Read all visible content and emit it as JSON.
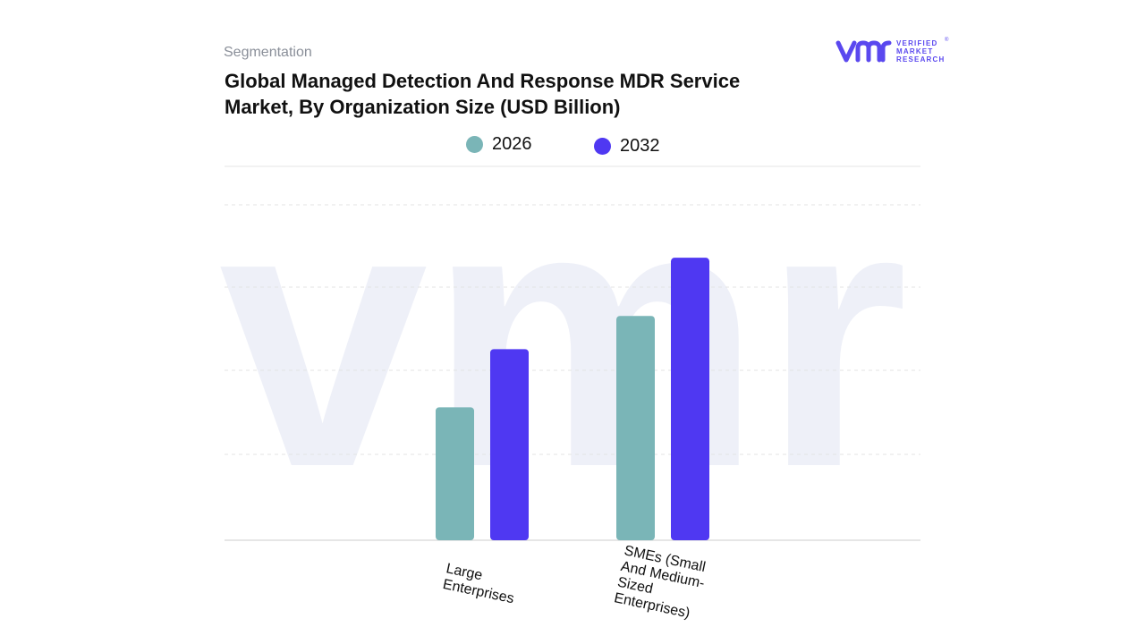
{
  "header": {
    "subtitle": "Segmentation",
    "title": "Global Managed Detection And Response MDR Service Market, By Organization Size (USD Billion)"
  },
  "logo": {
    "mark": "vmr",
    "lines": [
      "VERIFIED",
      "MARKET",
      "RESEARCH"
    ],
    "registered": "®",
    "color": "#5a48ef"
  },
  "legend": {
    "items": [
      {
        "label": "2026",
        "color": "#7ab5b7"
      },
      {
        "label": "2032",
        "color": "#4f38f2"
      }
    ]
  },
  "chart_data": {
    "type": "bar",
    "categories": [
      "Large Enterprises",
      "SMEs (Small And Medium-Sized Enterprises)"
    ],
    "category_label_lines": [
      [
        "Large",
        "Enterprises"
      ],
      [
        "SMEs (Small",
        "And Medium-",
        "Sized",
        "Enterprises)"
      ]
    ],
    "series": [
      {
        "name": "2026",
        "values": [
          1.6,
          2.7
        ],
        "color": "#7ab5b7"
      },
      {
        "name": "2032",
        "values": [
          2.3,
          3.4
        ],
        "color": "#4f38f2"
      }
    ],
    "ylim": [
      0,
      4.5
    ],
    "grid": true,
    "legend_position": "top-center",
    "axis_tick_labels_shown": false,
    "watermark": "vmr"
  }
}
